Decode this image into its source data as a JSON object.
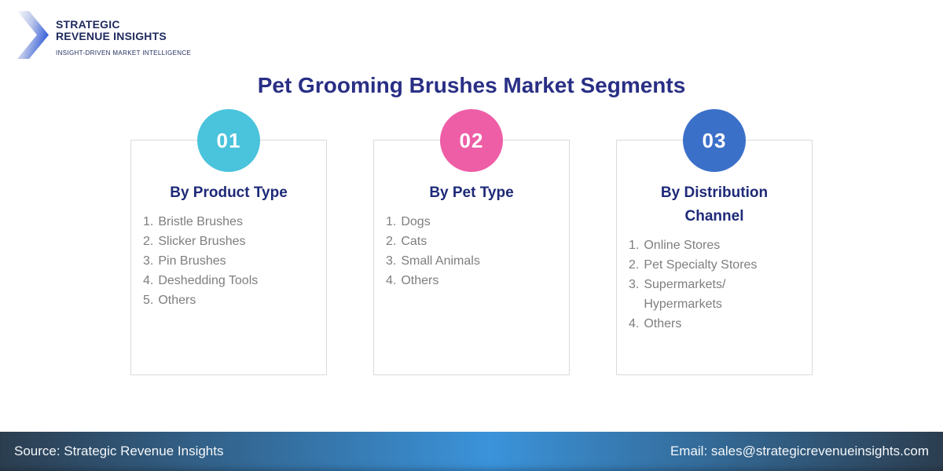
{
  "logo": {
    "line1": "STRATEGIC",
    "line2": "REVENUE INSIGHTS",
    "tagline": "INSIGHT-DRIVEN MARKET INTELLIGENCE"
  },
  "title": "Pet Grooming Brushes Market Segments",
  "segments": [
    {
      "number": "01",
      "color": "#4ac3dc",
      "title": "By Product Type",
      "items": [
        "Bristle Brushes",
        "Slicker Brushes",
        "Pin Brushes",
        "Deshedding Tools",
        "Others"
      ]
    },
    {
      "number": "02",
      "color": "#ee5ea6",
      "title": "By Pet Type",
      "items": [
        "Dogs",
        "Cats",
        "Small Animals",
        "Others"
      ]
    },
    {
      "number": "03",
      "color": "#3b70c9",
      "title": "By Distribution Channel",
      "items": [
        "Online Stores",
        "Pet Specialty Stores",
        "Supermarkets/\nHypermarkets",
        "Others"
      ]
    }
  ],
  "footer": {
    "source": "Source: Strategic Revenue Insights",
    "email": "Email: sales@strategicrevenueinsights.com"
  },
  "colors": {
    "title": "#292f85",
    "heading": "#1e2a78",
    "list-text": "#7e7e7e",
    "logo-navy": "#1f2a5e",
    "card-border": "#dadada",
    "footer-edge": "#2c3e50",
    "footer-center": "#3b93da",
    "chevron-blue": "#2f5ad8"
  }
}
